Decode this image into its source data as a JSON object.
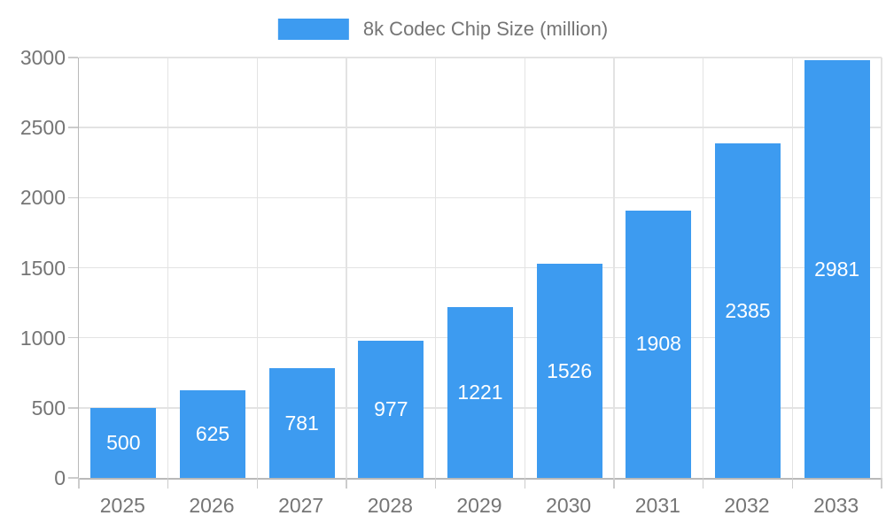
{
  "legend": {
    "label": "8k Codec Chip Size (million)"
  },
  "chart_data": {
    "type": "bar",
    "title": "",
    "categories": [
      "2025",
      "2026",
      "2027",
      "2028",
      "2029",
      "2030",
      "2031",
      "2032",
      "2033"
    ],
    "values": [
      500,
      625,
      781,
      977,
      1221,
      1526,
      1908,
      2385,
      2981
    ],
    "series_name": "8k Codec Chip Size (million)",
    "xlabel": "",
    "ylabel": "",
    "ylim": [
      0,
      3000
    ],
    "ytick_step": 500,
    "grid": true,
    "legend_position": "top-center",
    "bar_value_labels": "inside-center"
  },
  "colors": {
    "bar": "#3D9BF0",
    "bar_label": "#FFFFFF",
    "axis_text": "#757575",
    "gridline": "#E3E3E3",
    "axis_line": "#B9B9B9",
    "tick": "#CCCCCC",
    "background": "#FFFFFF"
  }
}
